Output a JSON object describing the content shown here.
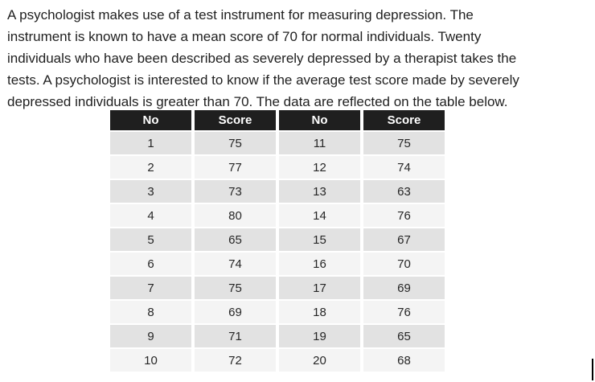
{
  "paragraph": {
    "lines": [
      "A psychologist makes use of a test instrument for measuring depression. The",
      "instrument is known to have a mean score of 70 for normal individuals. Twenty",
      "individuals who have been described as severely depressed by a therapist takes the",
      "tests. A psychologist is interested to know if the average test score made by severely",
      "depressed individuals is greater than 70. The data are reflected on the table below."
    ],
    "mean_score_reference": 70,
    "sample_size": 20
  },
  "table": {
    "headers": [
      "No",
      "Score",
      "No",
      "Score"
    ],
    "rows": [
      [
        "1",
        "75",
        "11",
        "75"
      ],
      [
        "2",
        "77",
        "12",
        "74"
      ],
      [
        "3",
        "73",
        "13",
        "63"
      ],
      [
        "4",
        "80",
        "14",
        "76"
      ],
      [
        "5",
        "65",
        "15",
        "67"
      ],
      [
        "6",
        "74",
        "16",
        "70"
      ],
      [
        "7",
        "75",
        "17",
        "69"
      ],
      [
        "8",
        "69",
        "18",
        "76"
      ],
      [
        "9",
        "71",
        "19",
        "65"
      ],
      [
        "10",
        "72",
        "20",
        "68"
      ]
    ],
    "colors": {
      "header_bg": "#1f1f1f",
      "header_text": "#ffffff",
      "row_odd_bg": "#e2e2e2",
      "row_even_bg": "#f4f4f4",
      "cell_text": "#262626"
    }
  },
  "cursor": {
    "visible": true,
    "color": "#000000"
  }
}
